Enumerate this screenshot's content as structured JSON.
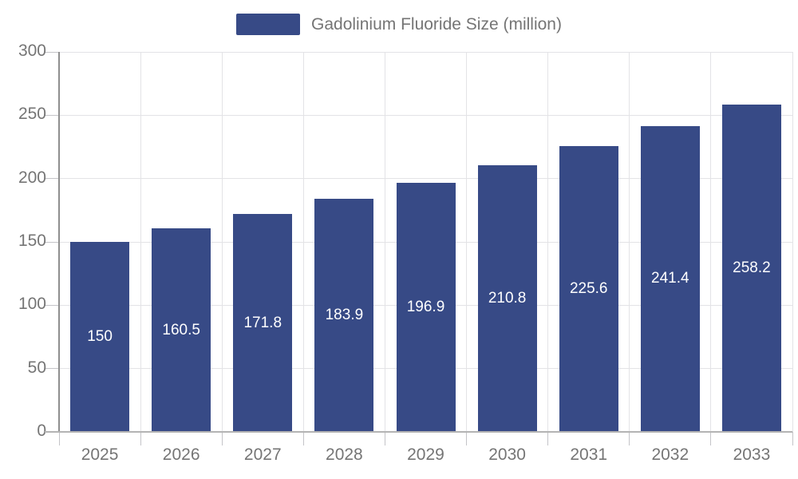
{
  "chart_data": {
    "type": "bar",
    "title": "Gadolinium Fluoride Size (million)",
    "legend": {
      "label": "Gadolinium Fluoride Size (million)",
      "position": "top"
    },
    "categories": [
      "2025",
      "2026",
      "2027",
      "2028",
      "2029",
      "2030",
      "2031",
      "2032",
      "2033"
    ],
    "values": [
      150,
      160.5,
      171.8,
      183.9,
      196.9,
      210.8,
      225.6,
      241.4,
      258.2
    ],
    "value_labels": [
      "150",
      "160.5",
      "171.8",
      "183.9",
      "196.9",
      "210.8",
      "225.6",
      "241.4",
      "258.2"
    ],
    "xlabel": "",
    "ylabel": "",
    "ylim": [
      0,
      300
    ],
    "ytick_step": 50,
    "yticks": [
      0,
      50,
      100,
      150,
      200,
      250,
      300
    ],
    "grid": true,
    "colors": {
      "bar": "#374a86",
      "bar_value_label": "#ffffff",
      "axis_tick_label": "#757575",
      "legend_text": "#757575",
      "gridline": "#e3e3e6",
      "y_axis_line": "#8f8f8f",
      "x_axis_line": "#b3b3b3",
      "tick_mark": "#c4c4c8"
    }
  }
}
